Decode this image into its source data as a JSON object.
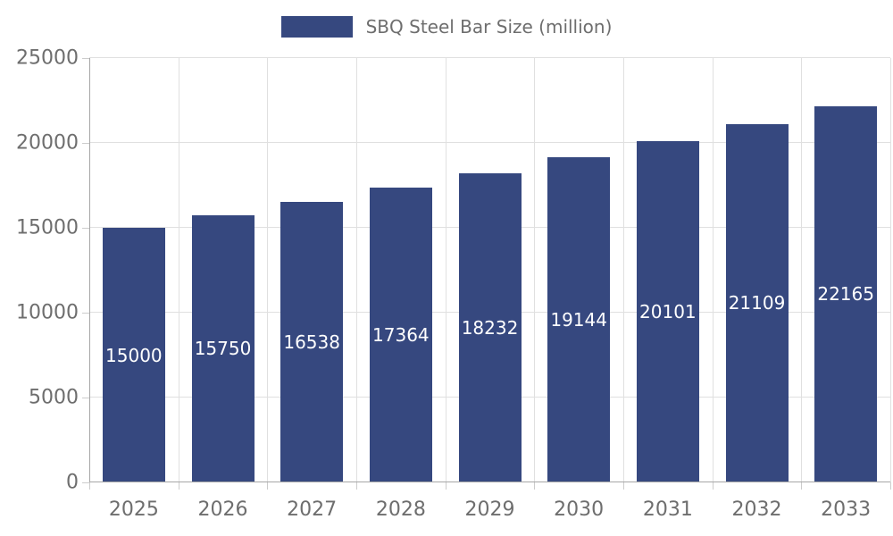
{
  "legend": {
    "items": [
      {
        "label": "SBQ Steel Bar Size (million)",
        "color": "#36487f"
      }
    ],
    "position": "top-center"
  },
  "colors": {
    "bar": "#36487f",
    "bar_value_label": "#ffffff",
    "axis_text": "#6e6e6e",
    "grid_line": "#e0e0e0",
    "axis_line": "#a6a6a6",
    "tick_mark": "#cccccc",
    "background": "#ffffff"
  },
  "chart_data": {
    "type": "bar",
    "title": "SBQ Steel Bar Size (million)",
    "categories": [
      "2025",
      "2026",
      "2027",
      "2028",
      "2029",
      "2030",
      "2031",
      "2032",
      "2033"
    ],
    "series": [
      {
        "name": "SBQ Steel Bar Size (million)",
        "values": [
          15000,
          15750,
          16538,
          17364,
          18232,
          19144,
          20101,
          21109,
          22165
        ],
        "color": "#36487f"
      }
    ],
    "xlabel": "",
    "ylabel": "",
    "ylim": [
      0,
      25000
    ],
    "yticks": [
      0,
      5000,
      10000,
      15000,
      20000,
      25000
    ],
    "grid": true,
    "legend_position": "top-center",
    "bar_labels_visible": true,
    "bar_label_position": "middle",
    "bar_label_color": "#ffffff"
  }
}
